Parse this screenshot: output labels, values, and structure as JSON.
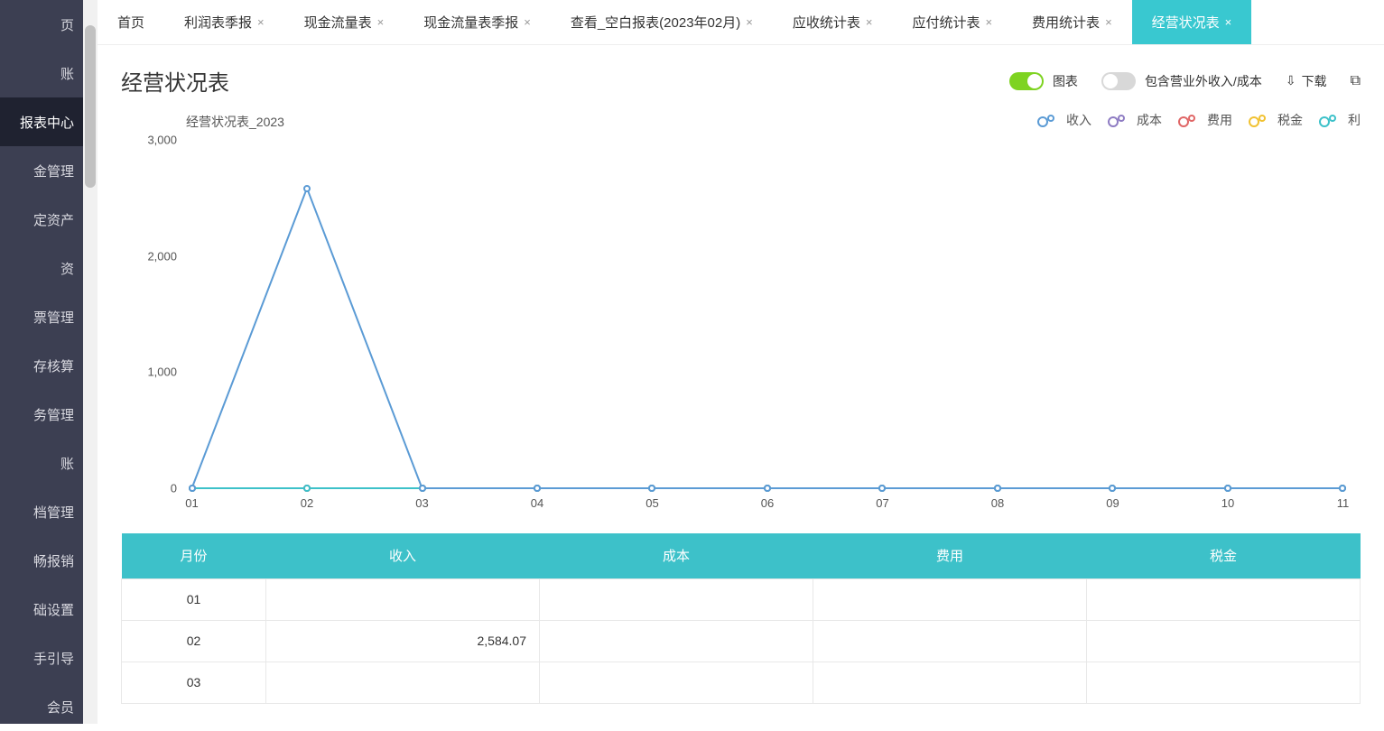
{
  "sidebar": {
    "items": [
      {
        "label": "页"
      },
      {
        "label": "账"
      },
      {
        "label": "报表中心",
        "active": true
      },
      {
        "label": "金管理"
      },
      {
        "label": "定资产"
      },
      {
        "label": "资"
      },
      {
        "label": "票管理"
      },
      {
        "label": "存核算"
      },
      {
        "label": "务管理"
      },
      {
        "label": "账"
      },
      {
        "label": "档管理"
      },
      {
        "label": "畅报销"
      },
      {
        "label": "础设置"
      },
      {
        "label": "手引导"
      },
      {
        "label": "会员"
      }
    ]
  },
  "tabs": [
    {
      "label": "首页",
      "closable": false
    },
    {
      "label": "利润表季报",
      "closable": true
    },
    {
      "label": "现金流量表",
      "closable": true
    },
    {
      "label": "现金流量表季报",
      "closable": true
    },
    {
      "label": "查看_空白报表(2023年02月)",
      "closable": true
    },
    {
      "label": "应收统计表",
      "closable": true
    },
    {
      "label": "应付统计表",
      "closable": true
    },
    {
      "label": "费用统计表",
      "closable": true
    },
    {
      "label": "经营状况表",
      "closable": true,
      "active": true
    }
  ],
  "page": {
    "title": "经营状况表",
    "toggle_chart": {
      "label": "图表",
      "on": true
    },
    "toggle_extra": {
      "label": "包含营业外收入/成本",
      "on": false
    },
    "download_label": "下载"
  },
  "chart": {
    "type": "line",
    "title": "经营状况表_2023",
    "x_categories": [
      "01",
      "02",
      "03",
      "04",
      "05",
      "06",
      "07",
      "08",
      "09",
      "10",
      "11"
    ],
    "ylim": [
      0,
      3000
    ],
    "yticks": [
      0,
      1000,
      2000,
      3000
    ],
    "ytick_labels": [
      "0",
      "1,000",
      "2,000",
      "3,000"
    ],
    "legend": [
      {
        "name": "收入",
        "color": "#5b9bd5"
      },
      {
        "name": "成本",
        "color": "#8e7cc3"
      },
      {
        "name": "费用",
        "color": "#e06666"
      },
      {
        "name": "税金",
        "color": "#f1c232"
      },
      {
        "name": "利",
        "color": "#3dc1c9"
      }
    ],
    "series": {
      "收入": [
        0,
        2584.07,
        0,
        0,
        0,
        0,
        0,
        0,
        0,
        0,
        0
      ],
      "成本": [
        0,
        0,
        0,
        0,
        0,
        0,
        0,
        0,
        0,
        0,
        0
      ],
      "费用": [
        0,
        0,
        0,
        0,
        0,
        0,
        0,
        0,
        0,
        0,
        0
      ],
      "税金": [
        0,
        0,
        0,
        0,
        0,
        0,
        0,
        0,
        0,
        0,
        0
      ],
      "利": [
        0,
        0,
        0,
        0,
        0,
        0,
        0,
        0,
        0,
        0,
        0
      ]
    },
    "marker_size": 8,
    "line_width": 2,
    "background_color": "#ffffff"
  },
  "table": {
    "columns": [
      "月份",
      "收入",
      "成本",
      "费用",
      "税金"
    ],
    "col_widths": [
      "160px",
      "",
      "",
      "",
      ""
    ],
    "rows": [
      {
        "month": "01",
        "values": [
          "",
          "",
          "",
          ""
        ]
      },
      {
        "month": "02",
        "values": [
          "2,584.07",
          "",
          "",
          ""
        ]
      },
      {
        "month": "03",
        "values": [
          "",
          "",
          "",
          ""
        ]
      }
    ],
    "header_bg": "#3dc1c9",
    "header_fg": "#ffffff",
    "border_color": "#e8e8e8"
  }
}
